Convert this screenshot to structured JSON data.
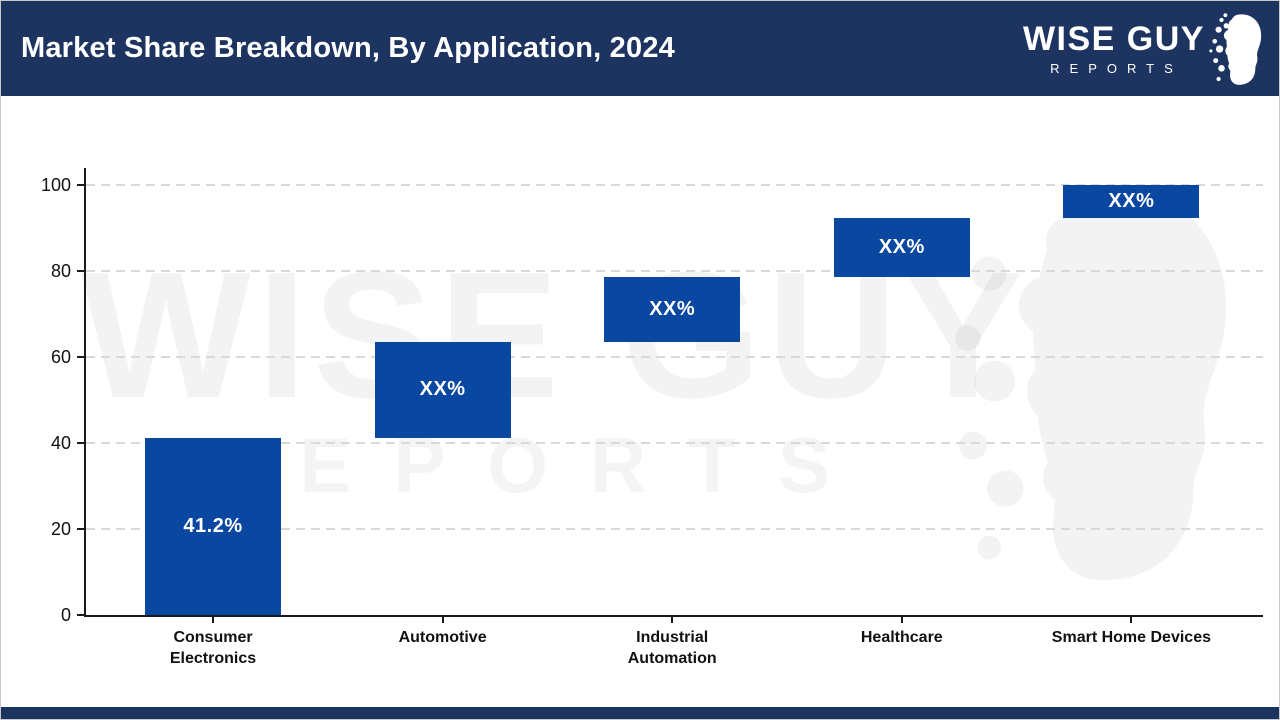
{
  "header": {
    "title": "Market Share Breakdown, By Application, 2024",
    "logo": {
      "brand_line1": "WISE GUY",
      "brand_line2": "REPORTS"
    }
  },
  "watermark": {
    "line1": "WISE GUY",
    "line2": "REPORTS"
  },
  "colors": {
    "header_bg": "#1d3461",
    "footer_bg": "#1d3461",
    "bar": "#0a47a1",
    "grid": "#d9d9d9",
    "axis": "#1a1a1a",
    "bar_label_text": "#ffffff",
    "watermark": "#f2f2f2"
  },
  "chart_data": {
    "type": "bar",
    "variant": "waterfall-floating-bars",
    "title": "Market Share Breakdown, By Application, 2024",
    "categories": [
      "Consumer Electronics",
      "Automotive",
      "Industrial Automation",
      "Healthcare",
      "Smart Home Devices"
    ],
    "category_label_lines": [
      [
        "Consumer",
        "Electronics"
      ],
      [
        "Automotive"
      ],
      [
        "Industrial",
        "Automation"
      ],
      [
        "Healthcare"
      ],
      [
        "Smart Home Devices"
      ]
    ],
    "segments": [
      {
        "category": "Consumer Electronics",
        "start": 0,
        "end": 41.2,
        "label": "41.2%"
      },
      {
        "category": "Automotive",
        "start": 41.2,
        "end": 63.5,
        "label": "XX%"
      },
      {
        "category": "Industrial Automation",
        "start": 63.5,
        "end": 78.5,
        "label": "XX%"
      },
      {
        "category": "Healthcare",
        "start": 78.5,
        "end": 92.3,
        "label": "XX%"
      },
      {
        "category": "Smart Home Devices",
        "start": 92.3,
        "end": 100,
        "label": "XX%"
      }
    ],
    "ylim": [
      0,
      100
    ],
    "yticks": [
      0,
      20,
      40,
      60,
      80,
      100
    ],
    "grid": "horizontal-dashed",
    "legend": "none",
    "bar_color": "#0a47a1"
  }
}
